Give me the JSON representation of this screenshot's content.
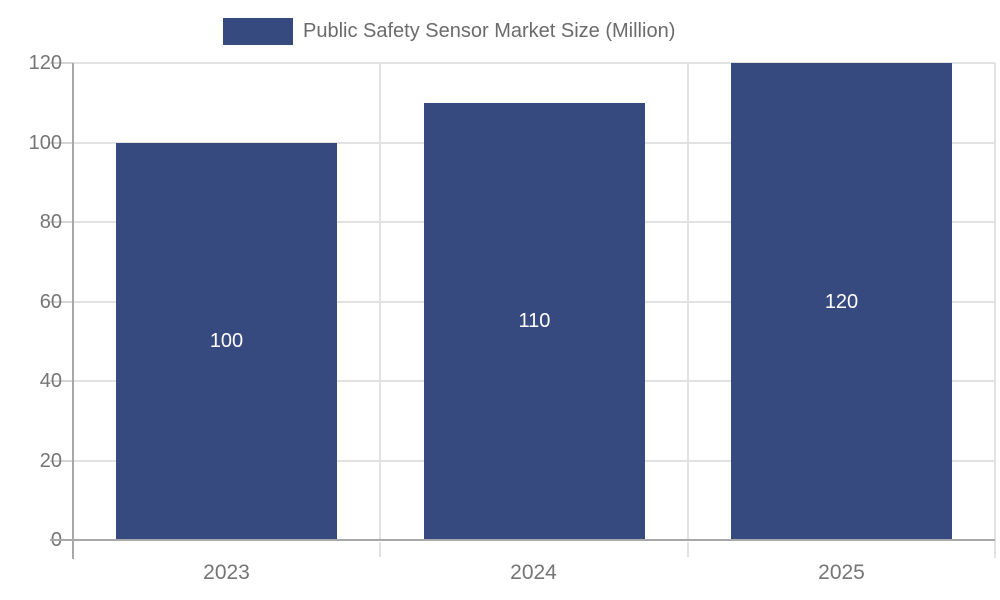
{
  "chart_data": {
    "type": "bar",
    "title": "Public Safety Sensor Market Size (Million)",
    "legend": [
      "Public Safety Sensor Market Size (Million)"
    ],
    "legend_position": "top",
    "categories": [
      "2023",
      "2024",
      "2025"
    ],
    "series": [
      {
        "name": "Public Safety Sensor Market Size (Million)",
        "values": [
          100,
          110,
          120
        ]
      }
    ],
    "data_labels": [
      "100",
      "110",
      "120"
    ],
    "xlabel": "",
    "ylabel": "",
    "ylim": [
      0,
      120
    ],
    "yticks": [
      "0",
      "20",
      "40",
      "60",
      "80",
      "100",
      "120"
    ],
    "grid": true,
    "colors": {
      "bar": "#374A80",
      "value_label": "#ffffff",
      "axis_line": "#a8a8a8",
      "gridline": "#e2e2e2",
      "tick_mark": "#d6d6d6",
      "tick_label_text": "#757575",
      "legend_text": "#6b6b6b",
      "background": "#ffffff"
    }
  }
}
